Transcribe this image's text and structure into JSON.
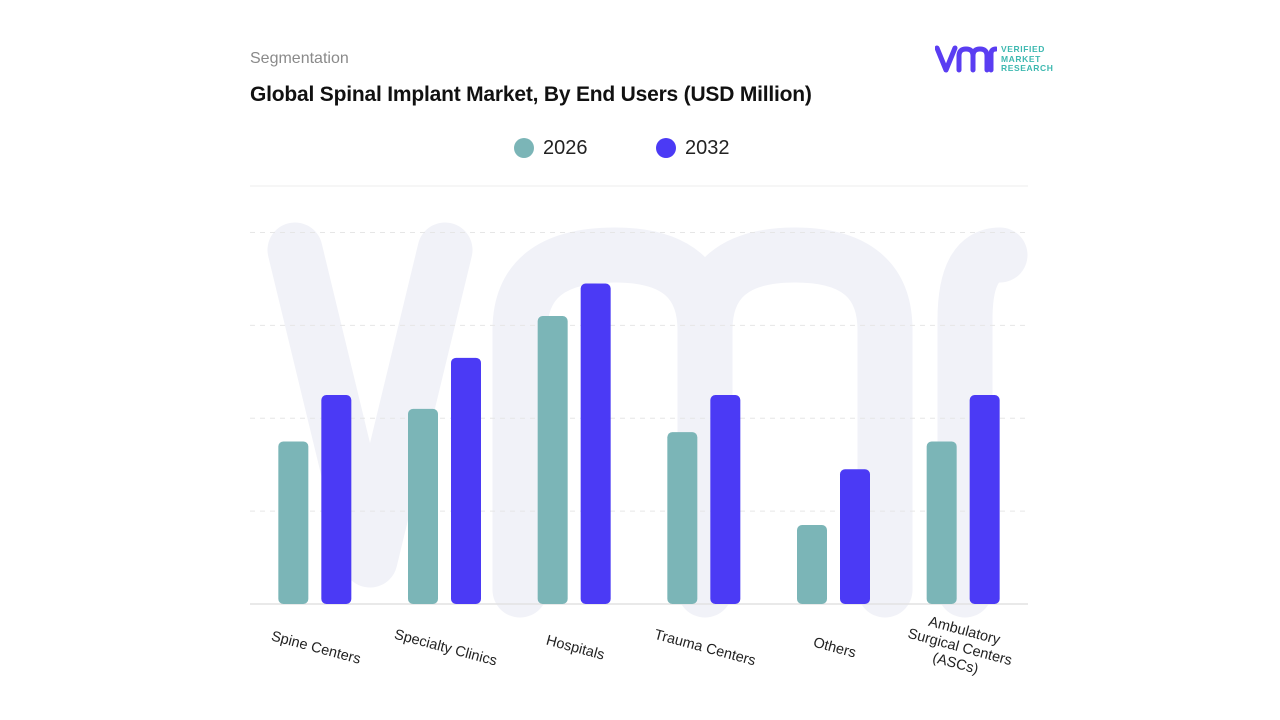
{
  "header": {
    "overline": "Segmentation",
    "title": "Global Spinal Implant Market, By End Users (USD Million)"
  },
  "logo": {
    "mark_text": "vmr",
    "lines": [
      "VERIFIED",
      "MARKET",
      "RESEARCH"
    ],
    "color_mark": "#5a3df2",
    "color_text": "#3db8b0"
  },
  "chart_data": {
    "type": "bar",
    "title": "Global Spinal Implant Market, By End Users (USD Million)",
    "categories": [
      "Spine Centers",
      "Specialty Clinics",
      "Hospitals",
      "Trauma Centers",
      "Others",
      "Ambulatory Surgical Centers (ASCs)"
    ],
    "series": [
      {
        "name": "2026",
        "color": "#7bb5b7",
        "values": [
          35,
          42,
          62,
          37,
          17,
          35
        ]
      },
      {
        "name": "2032",
        "color": "#4b3af5",
        "values": [
          45,
          53,
          69,
          45,
          29,
          45
        ]
      }
    ],
    "ylim": [
      0,
      90
    ],
    "grid": true,
    "y_tick_labels_visible": false,
    "legend": "top-center"
  }
}
